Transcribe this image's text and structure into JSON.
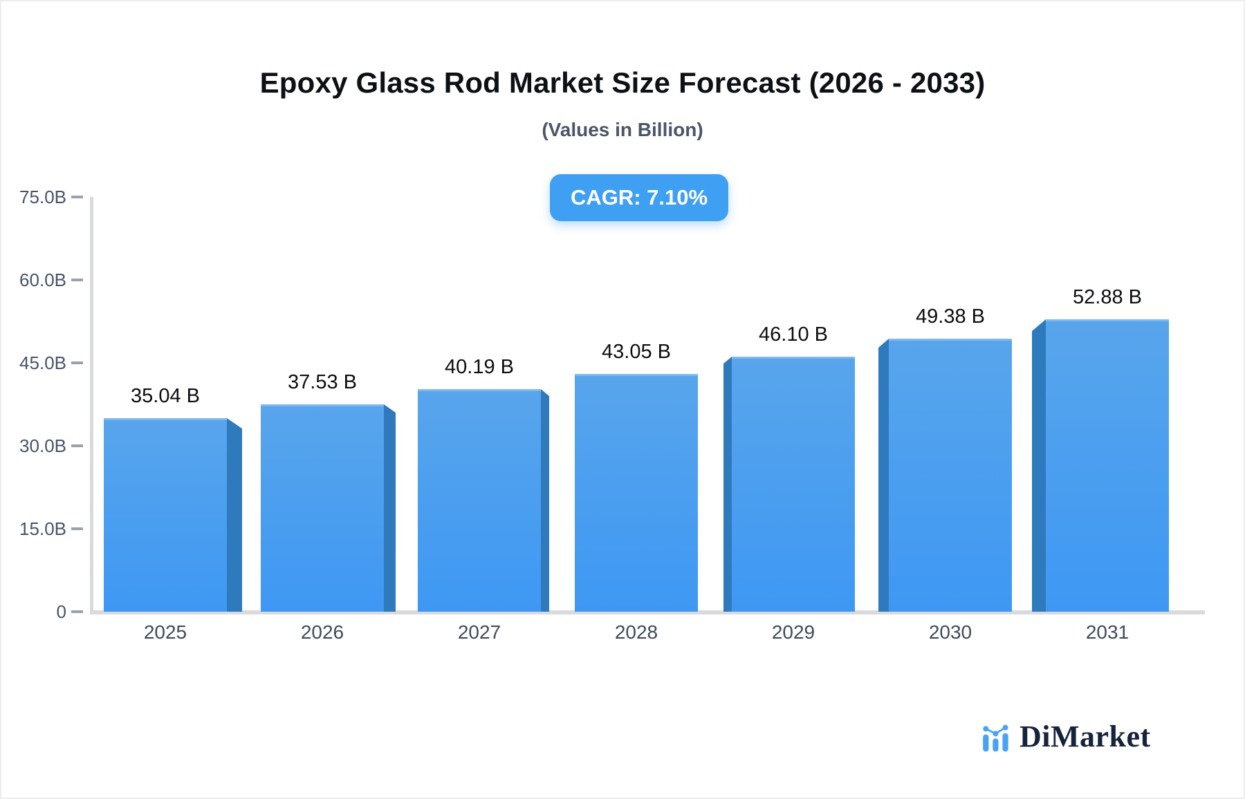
{
  "header": {
    "title": "Epoxy Glass Rod Market Size Forecast (2026 - 2033)",
    "subtitle": "(Values in Billion)"
  },
  "badge": {
    "label": "CAGR: 7.10%",
    "bg_color": "#3f9ff2",
    "text_color": "#ffffff"
  },
  "chart_data": {
    "type": "bar",
    "title": "Epoxy Glass Rod Market Size Forecast (2026 - 2033)",
    "subtitle": "(Values in Billion)",
    "cagr": "7.10%",
    "categories": [
      "2025",
      "2026",
      "2027",
      "2028",
      "2029",
      "2030",
      "2031"
    ],
    "values": [
      35.04,
      37.53,
      40.19,
      43.05,
      46.1,
      49.38,
      52.88
    ],
    "value_labels": [
      "35.04 B",
      "37.53 B",
      "40.19 B",
      "43.05 B",
      "46.10 B",
      "49.38 B",
      "52.88 B"
    ],
    "unit": "Billion",
    "xlabel": "",
    "ylabel": "",
    "ylim": [
      0,
      75
    ],
    "yticks": [
      {
        "value": 0,
        "label": "0"
      },
      {
        "value": 15,
        "label": "15.0B"
      },
      {
        "value": 30,
        "label": "30.0B"
      },
      {
        "value": 45,
        "label": "45.0B"
      },
      {
        "value": 60,
        "label": "60.0B"
      },
      {
        "value": 75,
        "label": "75.0B"
      }
    ],
    "grid": false,
    "legend": false,
    "bar_style": "3d-perspective-center-vanishing",
    "colors": {
      "bar_front_top": "#58a5ec",
      "bar_front_bottom": "#3e98f3",
      "bar_top_edge": "#7db9ef",
      "bar_side": "#2e7abd",
      "axis_line": "#d9dade",
      "tick_dash": "#9aa1ac",
      "ytick_text": "#46536a",
      "xtick_text": "#3e4a5c",
      "value_text": "#0b0d10"
    }
  },
  "logo": {
    "text": "DiMarket",
    "icon": "mini-bar-line-chart-icon",
    "icon_color": "#4aa2f5",
    "text_color": "#16233c"
  }
}
